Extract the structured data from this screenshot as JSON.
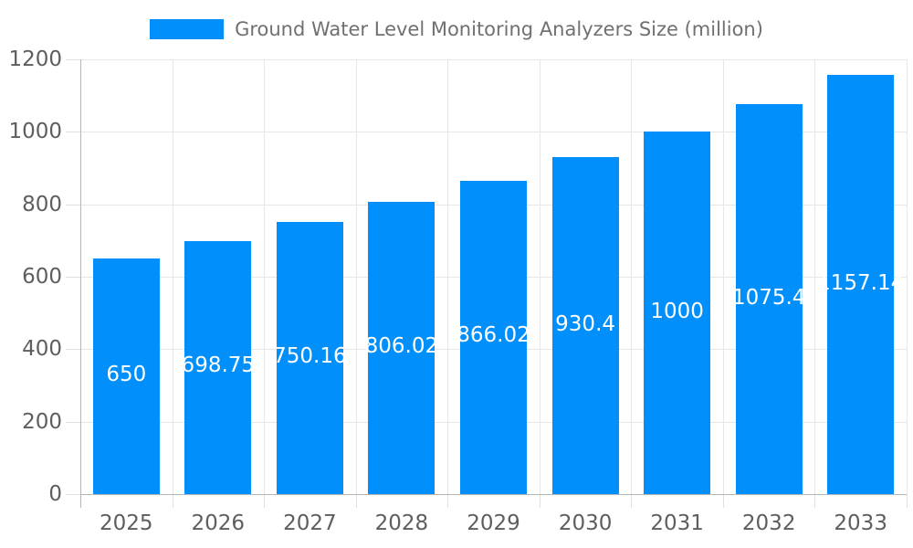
{
  "chart_data": {
    "type": "bar",
    "title": "Ground Water Level Monitoring Analyzers Size (million)",
    "categories": [
      "2025",
      "2026",
      "2027",
      "2028",
      "2029",
      "2030",
      "2031",
      "2032",
      "2033"
    ],
    "series": [
      {
        "name": "Ground Water Level Monitoring Analyzers Size (million)",
        "values": [
          650,
          698.75,
          750.16,
          806.02,
          866.02,
          930.4,
          1000,
          1075.4,
          1157.14
        ],
        "value_labels": [
          "650",
          "698.75",
          "750.16",
          "806.02",
          "866.02",
          "930.4",
          "1000",
          "1075.4",
          "1157.14"
        ]
      }
    ],
    "xlabel": "",
    "ylabel": "",
    "ylim": [
      0,
      1200
    ],
    "y_ticks": [
      0,
      200,
      400,
      600,
      800,
      1000,
      1200
    ],
    "grid": true,
    "legend_position": "top",
    "value_label_position": "inside-center"
  },
  "legend": {
    "label": "Ground Water Level Monitoring Analyzers Size (million)",
    "swatch_color": "#008FFB"
  },
  "colors": {
    "bar": "#008FFB",
    "value_label": "#FFFFFF",
    "axis_label": "#5E5E5E",
    "legend_label": "#707070",
    "gridline": "#E7E7E7",
    "tick": "#E0E0E0",
    "axis_line": "#B5B5B5",
    "background": "#FFFFFF"
  }
}
